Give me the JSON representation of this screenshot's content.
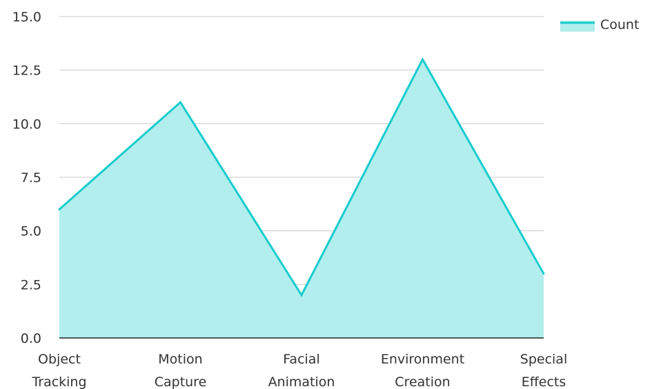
{
  "chart_data": {
    "type": "area",
    "title": "",
    "xlabel": "",
    "ylabel": "",
    "categories": [
      [
        "Object",
        "Tracking"
      ],
      [
        "Motion",
        "Capture"
      ],
      [
        "Facial",
        "Animation"
      ],
      [
        "Environment",
        "Creation"
      ],
      [
        "Special",
        "Effects"
      ]
    ],
    "series": [
      {
        "name": "Count",
        "values": [
          6,
          11,
          2,
          13,
          3
        ],
        "color": "#17cccc",
        "fill": "#b2eeee"
      }
    ],
    "ylim": [
      0,
      15
    ],
    "yticks": [
      "0.0",
      "2.5",
      "5.0",
      "7.5",
      "10.0",
      "12.5",
      "15.0"
    ],
    "grid": true,
    "legend_position": "top-right",
    "colors": {
      "grid": "#c8c8c8",
      "axis": "#222222",
      "text": "#333333"
    }
  }
}
